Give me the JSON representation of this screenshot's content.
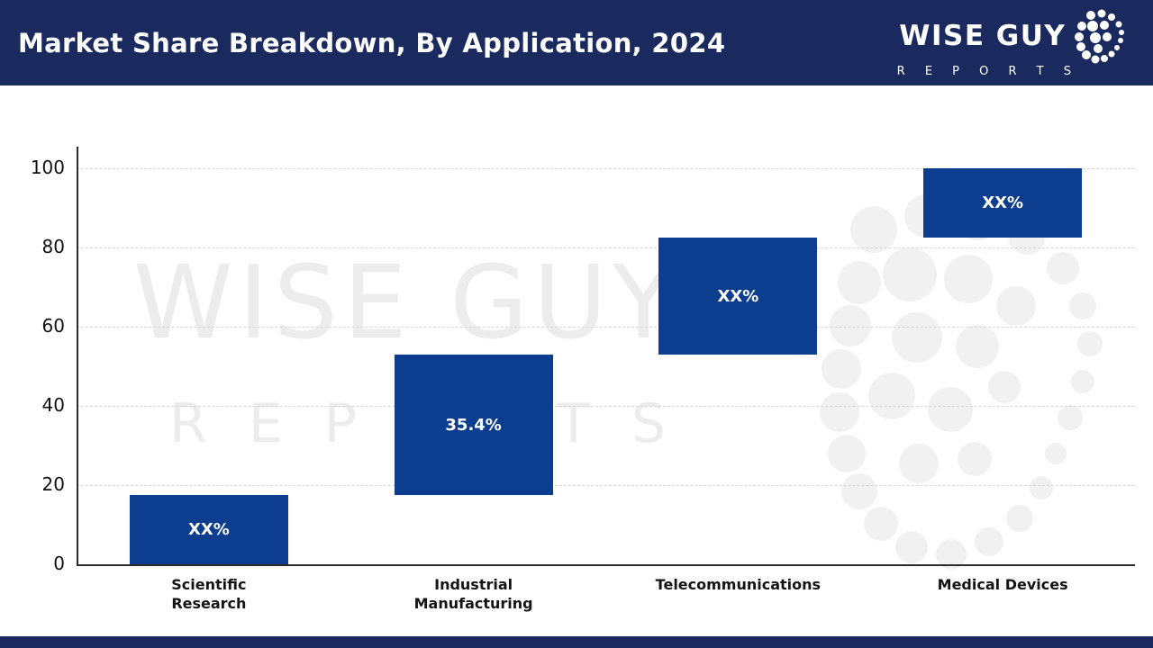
{
  "header": {
    "title": "Market Share Breakdown, By Application, 2024",
    "logo": {
      "line1": "WISE GUY",
      "line2": "R E P O R T S"
    }
  },
  "watermark": {
    "line1": "WISE GUY",
    "line2": "REPORTS"
  },
  "colors": {
    "header_bg": "#1b2a5e",
    "footer_bg": "#1b2a5e",
    "bar": "#0d3d8f",
    "bar_label": "#ffffff",
    "grid": "#d8d8d8",
    "axis": "#2b2b2b",
    "watermark": "#ececec"
  },
  "chart_data": {
    "type": "bar",
    "subtype": "waterfall-floating-bars",
    "title": "Market Share Breakdown, By Application, 2024",
    "categories": [
      "Scientific\nResearch",
      "Industrial\nManufacturing",
      "Telecommunications",
      "Medical Devices"
    ],
    "segments": [
      {
        "category": "Scientific Research",
        "start": 0,
        "end": 17.5,
        "label": "XX%"
      },
      {
        "category": "Industrial Manufacturing",
        "start": 17.5,
        "end": 52.9,
        "label": "35.4%"
      },
      {
        "category": "Telecommunications",
        "start": 52.9,
        "end": 82.5,
        "label": "XX%"
      },
      {
        "category": "Medical Devices",
        "start": 82.5,
        "end": 100,
        "label": "XX%"
      }
    ],
    "xlabel": "",
    "ylabel": "",
    "ylim": [
      0,
      100
    ],
    "yticks": [
      0,
      20,
      40,
      60,
      80,
      100
    ],
    "grid": "horizontal-dashed",
    "legend": "none"
  }
}
